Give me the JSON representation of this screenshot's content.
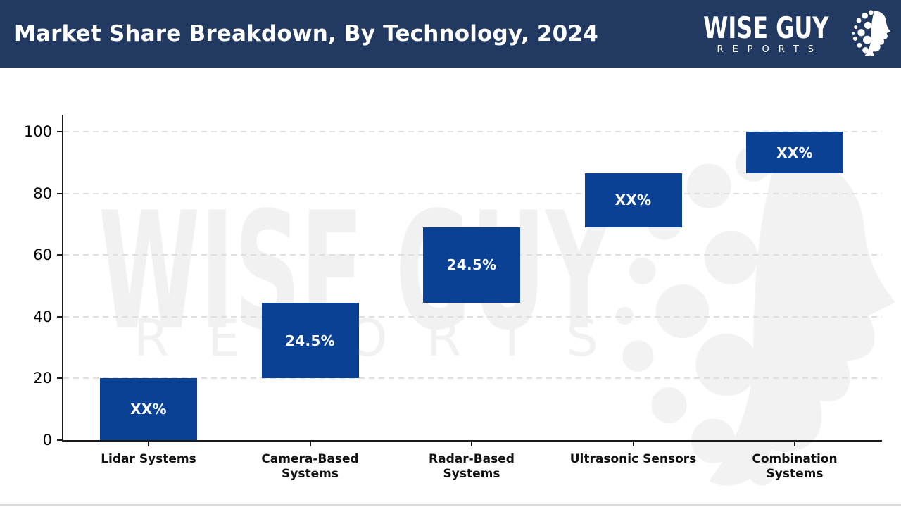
{
  "header": {
    "title": "Market Share Breakdown, By Technology, 2024",
    "logo": {
      "line1": "WISE GUY",
      "line2": "REPORTS"
    }
  },
  "watermark": {
    "line1": "WISE GUY",
    "line2": "REPORTS"
  },
  "chart_data": {
    "type": "bar",
    "subtype": "waterfall",
    "title": "Market Share Breakdown, By Technology, 2024",
    "categories": [
      "Lidar Systems",
      "Camera-Based\nSystems",
      "Radar-Based\nSystems",
      "Ultrasonic Sensors",
      "Combination\nSystems"
    ],
    "segments": [
      {
        "category": "Lidar Systems",
        "start": 0,
        "end": 20,
        "label": "XX%"
      },
      {
        "category": "Camera-Based Systems",
        "start": 20,
        "end": 44.5,
        "label": "24.5%"
      },
      {
        "category": "Radar-Based Systems",
        "start": 44.5,
        "end": 69,
        "label": "24.5%"
      },
      {
        "category": "Ultrasonic Sensors",
        "start": 69,
        "end": 86.5,
        "label": "XX%"
      },
      {
        "category": "Combination Systems",
        "start": 86.5,
        "end": 100,
        "label": "XX%"
      }
    ],
    "y_ticks": [
      0,
      20,
      40,
      60,
      80,
      100
    ],
    "ylim": [
      0,
      105
    ],
    "xlabel": "",
    "ylabel": "",
    "grid": "horizontal-dashed",
    "legend": "none",
    "colors": {
      "bar": "#0a4194",
      "bar_label": "#ffffff",
      "axis": "#1a1a1a",
      "grid": "#e0e0e0",
      "tick_label": "#000000",
      "header_bg": "#223961",
      "header_text": "#ffffff",
      "watermark": "#f1f1f1"
    }
  }
}
